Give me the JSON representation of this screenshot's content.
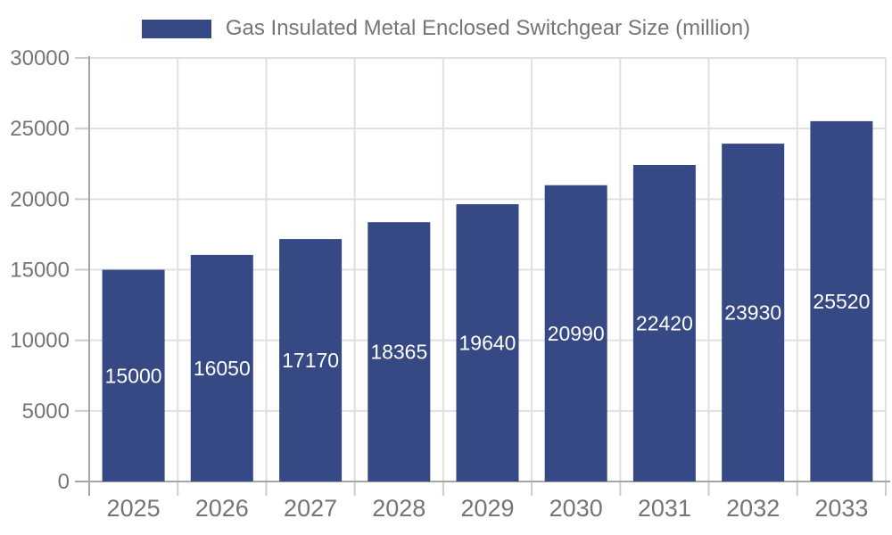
{
  "legend": {
    "label": "Gas Insulated Metal Enclosed Switchgear Size (million)"
  },
  "colors": {
    "bar": "#364984",
    "grid": "#e0e0e0",
    "tick": "#cccccc",
    "axis": "#a6a6a6",
    "axis_text": "#757575",
    "value_label": "#ffffff",
    "background": "#ffffff"
  },
  "chart_data": {
    "type": "bar",
    "title": "Gas Insulated Metal Enclosed Switchgear Size (million)",
    "categories": [
      "2025",
      "2026",
      "2027",
      "2028",
      "2029",
      "2030",
      "2031",
      "2032",
      "2033"
    ],
    "series": [
      {
        "name": "Gas Insulated Metal Enclosed Switchgear Size (million)",
        "color": "#364984",
        "values": [
          15000,
          16050,
          17170,
          18365,
          19640,
          20990,
          22420,
          23930,
          25520
        ]
      }
    ],
    "xlabel": "",
    "ylabel": "",
    "ylim": [
      0,
      30000
    ],
    "y_ticks": [
      0,
      5000,
      10000,
      15000,
      20000,
      25000,
      30000
    ],
    "grid": true,
    "legend_position": "top",
    "value_labels": {
      "position": "inside-center",
      "color": "#ffffff"
    }
  }
}
